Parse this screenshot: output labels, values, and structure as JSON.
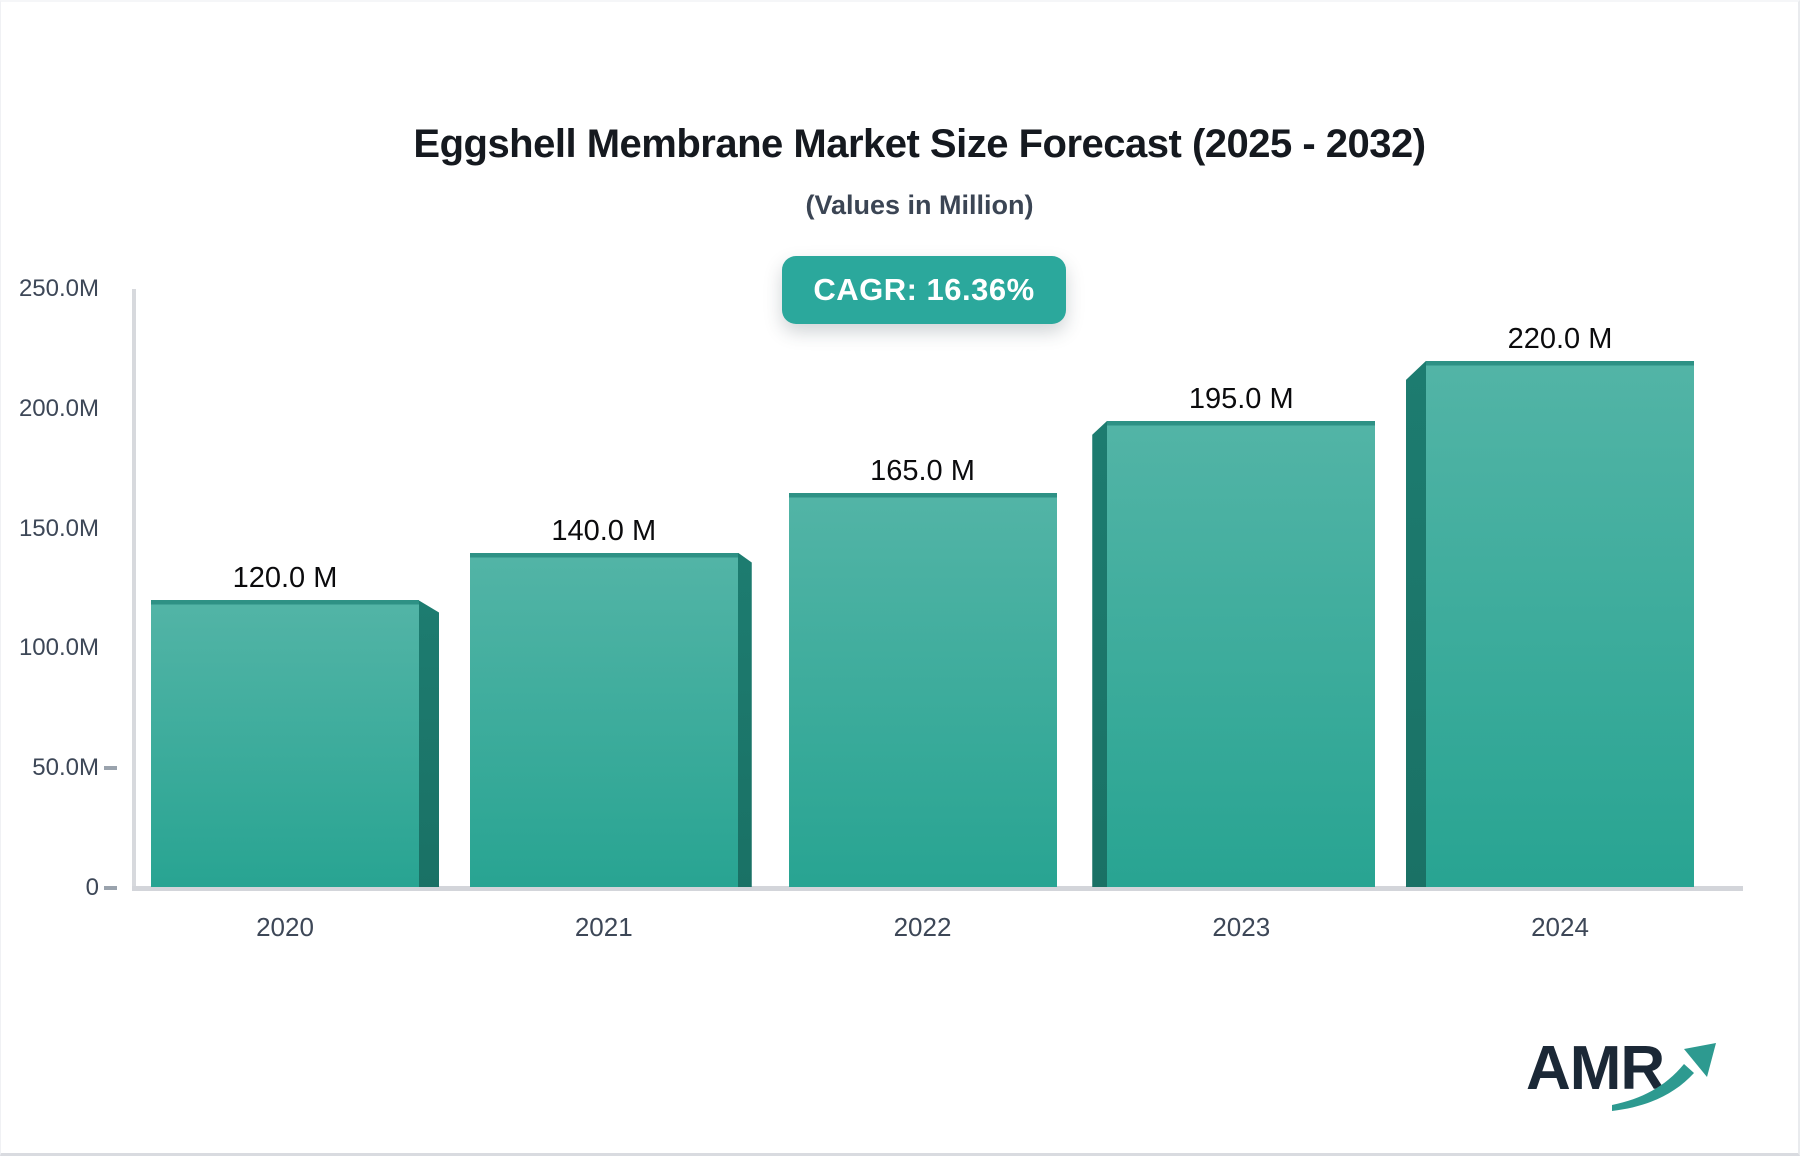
{
  "header": {
    "title": "Eggshell Membrane Market Size Forecast (2025 - 2032)",
    "subtitle": "(Values in Million)",
    "cagr_badge": "CAGR: 16.36%"
  },
  "chart_data": {
    "type": "bar",
    "title": "Eggshell Membrane Market Size Forecast (2025 - 2032)",
    "subtitle": "(Values in Million)",
    "unit": "Million",
    "categories": [
      "2020",
      "2021",
      "2022",
      "2023",
      "2024"
    ],
    "values": [
      120.0,
      140.0,
      165.0,
      195.0,
      220.0
    ],
    "value_labels": [
      "120.0 M",
      "140.0 M",
      "165.0 M",
      "195.0 M",
      "220.0 M"
    ],
    "cagr_value": "16.36%",
    "xlabel": "",
    "ylabel": "",
    "ylim": [
      0,
      250
    ],
    "yticks": [
      {
        "value": 0,
        "label": "0",
        "dash": true
      },
      {
        "value": 50,
        "label": "50.0M",
        "dash": true
      },
      {
        "value": 100,
        "label": "100.0M",
        "dash": false
      },
      {
        "value": 150,
        "label": "150.0M",
        "dash": false
      },
      {
        "value": 200,
        "label": "200.0M",
        "dash": false
      },
      {
        "value": 250,
        "label": "250.0M",
        "dash": false
      }
    ],
    "grid": false,
    "legend": false,
    "style_notes": "pseudo-3D bars; shaded side faces angled toward chart center; teal vertical gradient faces",
    "colors": {
      "face_top": "#52b4a6",
      "face_bottom": "#28a492",
      "face_top_edge": "#2e9185",
      "side_face": "#1d7c70",
      "badge": "#2ba89c",
      "axis": "#d3d5da",
      "tick_text": "#3d4757",
      "value_text": "#0b0b0d"
    }
  },
  "logo": {
    "text": "AMR",
    "text_color": "#1b2836",
    "arrow_color": "#2d9a90",
    "arrow_icon": "growth-arrow"
  }
}
